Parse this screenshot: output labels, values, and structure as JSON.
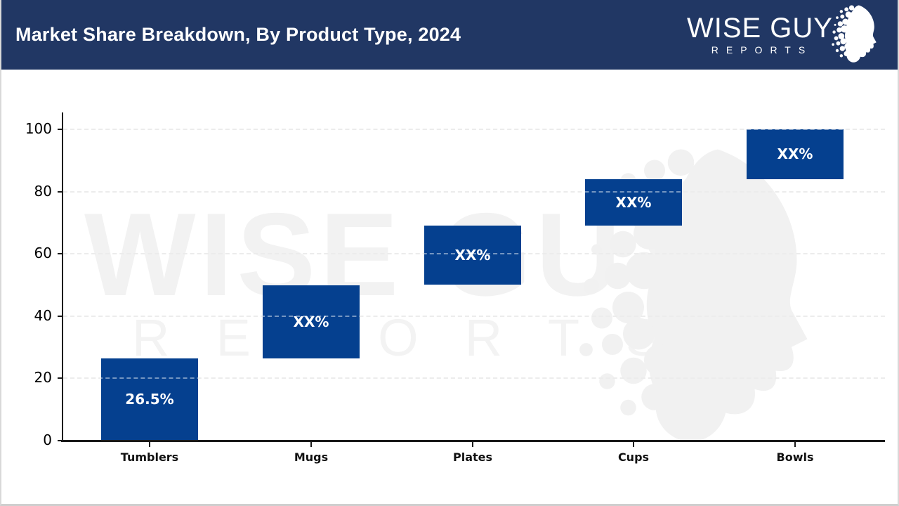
{
  "header": {
    "title": "Market Share Breakdown, By Product Type, 2024",
    "bg_color": "#213764",
    "logo": {
      "wordmark": "WISE GUY",
      "subtext": "REPORTS"
    }
  },
  "watermark": {
    "wordmark": "WISE GUY",
    "subtext": "REPORTS"
  },
  "chart_data": {
    "type": "bar",
    "subtype": "waterfall",
    "title": "Market Share Breakdown, By Product Type, 2024",
    "xlabel": "",
    "ylabel": "",
    "categories": [
      "Tumblers",
      "Mugs",
      "Plates",
      "Cups",
      "Bowls"
    ],
    "segments": [
      {
        "category": "Tumblers",
        "start": 0,
        "end": 26.5,
        "label": "26.5%"
      },
      {
        "category": "Mugs",
        "start": 26.5,
        "end": 50,
        "label": "XX%"
      },
      {
        "category": "Plates",
        "start": 50,
        "end": 69,
        "label": "XX%"
      },
      {
        "category": "Cups",
        "start": 69,
        "end": 84,
        "label": "XX%"
      },
      {
        "category": "Bowls",
        "start": 84,
        "end": 100,
        "label": "XX%"
      }
    ],
    "yticks": [
      0,
      20,
      40,
      60,
      80,
      100
    ],
    "ylim": [
      0,
      105
    ],
    "grid": "horizontal-dashed",
    "legend": "none",
    "bar_color": "#05408f",
    "bar_label_color": "#ffffff",
    "axis_color": "#1a1a1a",
    "gridline_color": "#dcdcdc"
  }
}
